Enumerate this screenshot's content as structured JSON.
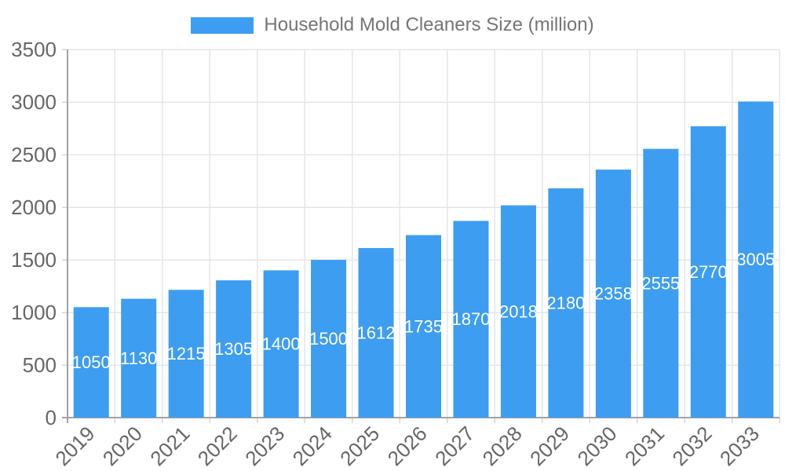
{
  "chart_data": {
    "type": "bar",
    "title": "Household Mold Cleaners Size (million)",
    "series_name": "Household Mold Cleaners Size (million)",
    "categories": [
      "2019",
      "2020",
      "2021",
      "2022",
      "2023",
      "2024",
      "2025",
      "2026",
      "2027",
      "2028",
      "2029",
      "2030",
      "2031",
      "2032",
      "2033"
    ],
    "values": [
      1050,
      1130,
      1215,
      1305,
      1400,
      1500,
      1612,
      1735,
      1870,
      2018,
      2180,
      2358,
      2555,
      2770,
      3005
    ],
    "xlabel": "",
    "ylabel": "",
    "ylim": [
      0,
      3500
    ],
    "y_ticks": [
      0,
      500,
      1000,
      1500,
      2000,
      2500,
      3000,
      3500
    ],
    "grid": true,
    "legend_position": "top",
    "x_label_rotation_deg": -45,
    "value_label_position": "center-of-bar"
  },
  "colors": {
    "background": "#FFFFFF",
    "bar": "#3D9DF0",
    "bar_value_text": "#FFFFFF",
    "gridline": "#E6E6E6",
    "axis_line": "#A3A3A3",
    "tick_mark": "#D4D4D4",
    "tick_text": "#666666",
    "legend_text": "#757575"
  }
}
